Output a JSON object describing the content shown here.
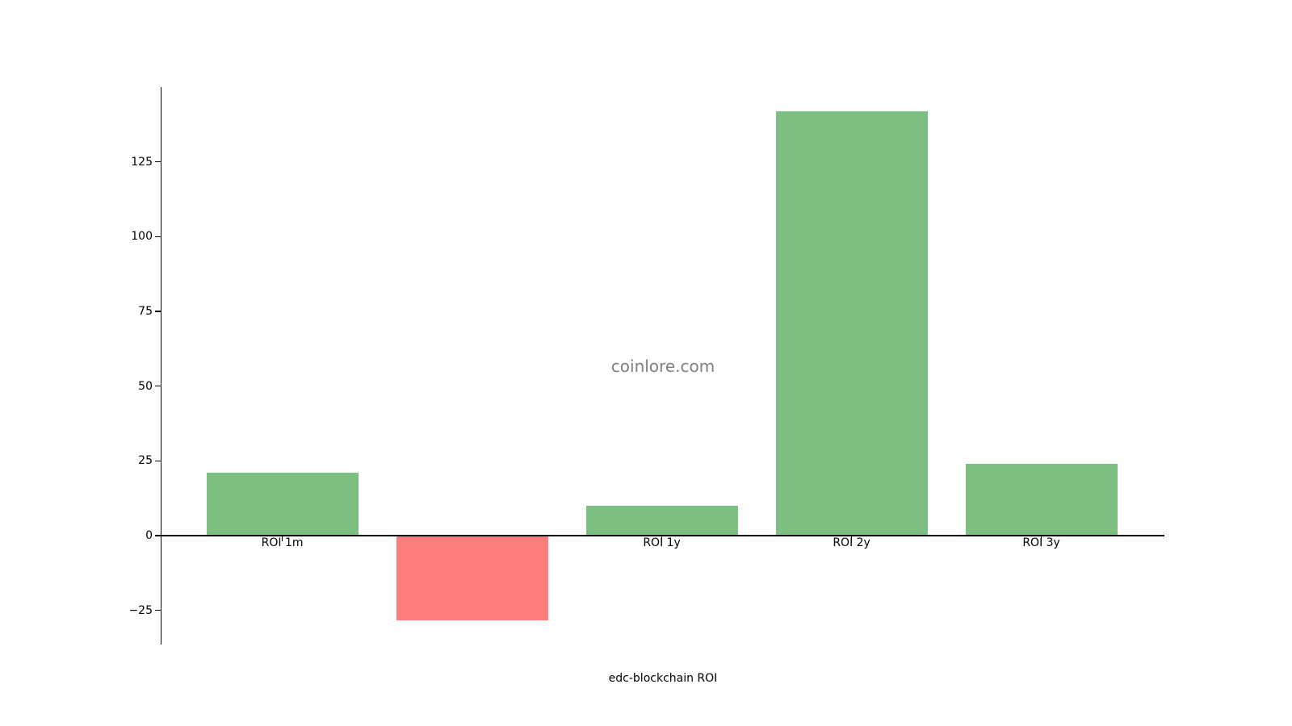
{
  "chart_data": {
    "type": "bar",
    "title": "edc-blockchain ROI",
    "watermark": "coinlore.com",
    "categories": [
      "ROI 1m",
      "",
      "ROI 1y",
      "ROI 2y",
      "ROI 3y"
    ],
    "values": [
      21,
      -28,
      10,
      142,
      24
    ],
    "yticks": [
      -25,
      0,
      25,
      50,
      75,
      100,
      125
    ],
    "ylim": [
      -36.4,
      150
    ],
    "colors": {
      "positive_bar": "#7dbe81",
      "negative_bar": "#fd7d7d",
      "axis": "#000000",
      "tick_label": "#000000",
      "watermark": "#7f7f7f",
      "background": "#ffffff"
    },
    "legend": "none",
    "grid": "off",
    "x_axis_position": "zero"
  }
}
